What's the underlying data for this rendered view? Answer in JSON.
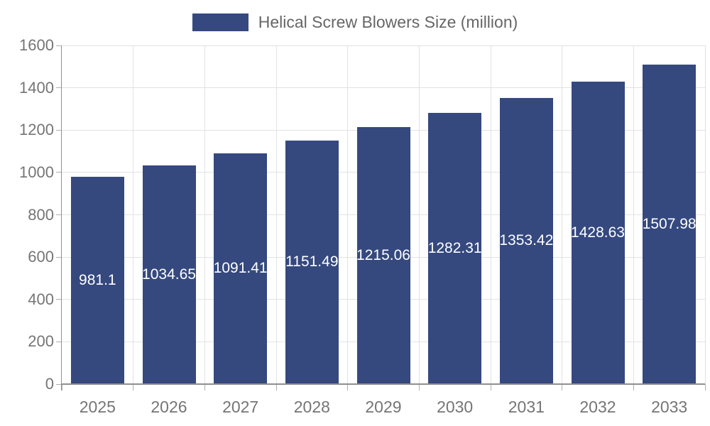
{
  "legend": {
    "label": "Helical Screw Blowers Size (million)"
  },
  "colors": {
    "bar": "#35497f",
    "bar_label_text": "#ffffff",
    "axis_label_text": "#757575",
    "legend_text": "#666666",
    "grid_line": "#e2e2e2",
    "axis_line": "#8f8f8f",
    "background": "#ffffff"
  },
  "chart_data": {
    "type": "bar",
    "title": "Helical Screw Blowers Size (million)",
    "categories": [
      "2025",
      "2026",
      "2027",
      "2028",
      "2029",
      "2030",
      "2031",
      "2032",
      "2033"
    ],
    "series": [
      {
        "name": "Helical Screw Blowers Size (million)",
        "values": [
          981.1,
          1034.65,
          1091.41,
          1151.49,
          1215.06,
          1282.31,
          1353.42,
          1428.63,
          1507.98
        ],
        "labels": [
          "981.1",
          "1034.65",
          "1091.41",
          "1151.49",
          "1215.06",
          "1282.31",
          "1353.42",
          "1428.63",
          "1507.98"
        ]
      }
    ],
    "xlabel": "",
    "ylabel": "",
    "ylim": [
      0,
      1600
    ],
    "yticks": [
      0,
      200,
      400,
      600,
      800,
      1000,
      1200,
      1400,
      1600
    ],
    "grid": true,
    "legend_position": "top-center",
    "value_labels_position": "inside-center"
  }
}
